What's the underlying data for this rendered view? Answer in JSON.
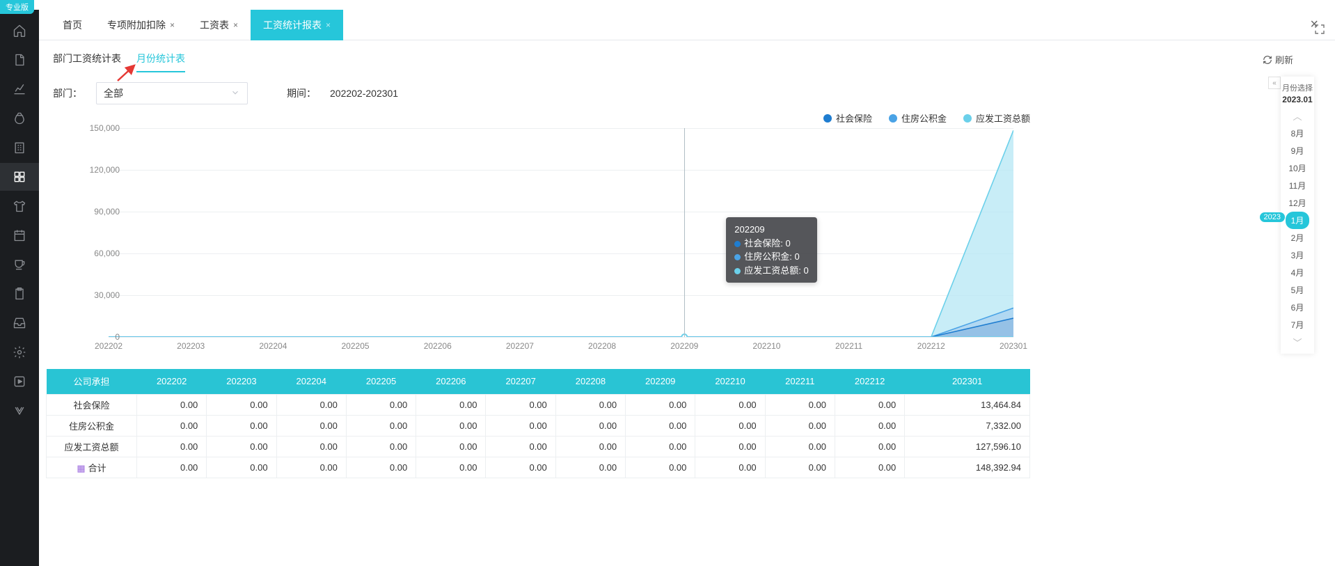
{
  "top_badge": "专业版",
  "tabs": [
    {
      "label": "首页",
      "closable": false
    },
    {
      "label": "专项附加扣除",
      "closable": true
    },
    {
      "label": "工资表",
      "closable": true
    },
    {
      "label": "工资统计报表",
      "closable": true,
      "active": true
    }
  ],
  "sub_tabs": [
    {
      "label": "部门工资统计表"
    },
    {
      "label": "月份统计表",
      "active": true
    }
  ],
  "refresh_label": "刷新",
  "filter": {
    "dept_label": "部门：",
    "dept_value": "全部",
    "period_label": "期间：",
    "period_value": "202202-202301"
  },
  "chart": {
    "type": "area",
    "categories": [
      "202202",
      "202203",
      "202204",
      "202205",
      "202206",
      "202207",
      "202208",
      "202209",
      "202210",
      "202211",
      "202212",
      "202301"
    ],
    "ylim": [
      0,
      150000
    ],
    "ytick_step": 30000,
    "yticks": [
      "0",
      "30,000",
      "60,000",
      "90,000",
      "120,000",
      "150,000"
    ],
    "grid_color": "#eceff1",
    "background_color": "#ffffff",
    "series": [
      {
        "name": "社会保险",
        "color": "#1f7dd0",
        "fill": "#8cb9e2",
        "values": [
          0,
          0,
          0,
          0,
          0,
          0,
          0,
          0,
          0,
          0,
          0,
          13465
        ]
      },
      {
        "name": "住房公积金",
        "color": "#4aa3e6",
        "fill": "#a9d0f0",
        "values": [
          0,
          0,
          0,
          0,
          0,
          0,
          0,
          0,
          0,
          0,
          0,
          20797
        ]
      },
      {
        "name": "应发工资总额",
        "color": "#6bd0ea",
        "fill": "#b6e7f4",
        "values": [
          0,
          0,
          0,
          0,
          0,
          0,
          0,
          0,
          0,
          0,
          0,
          148392
        ]
      }
    ],
    "hover": {
      "index": 7,
      "title": "202209",
      "rows": [
        {
          "color": "#1f7dd0",
          "text": "社会保险: 0"
        },
        {
          "color": "#4aa3e6",
          "text": "住房公积金: 0"
        },
        {
          "color": "#6bd0ea",
          "text": "应发工资总额: 0"
        }
      ]
    }
  },
  "table": {
    "header_first": "公司承担",
    "columns": [
      "202202",
      "202203",
      "202204",
      "202205",
      "202206",
      "202207",
      "202208",
      "202209",
      "202210",
      "202211",
      "202212",
      "202301"
    ],
    "rows": [
      {
        "label": "社会保险",
        "cells": [
          "0.00",
          "0.00",
          "0.00",
          "0.00",
          "0.00",
          "0.00",
          "0.00",
          "0.00",
          "0.00",
          "0.00",
          "0.00",
          "13,464.84"
        ]
      },
      {
        "label": "住房公积金",
        "cells": [
          "0.00",
          "0.00",
          "0.00",
          "0.00",
          "0.00",
          "0.00",
          "0.00",
          "0.00",
          "0.00",
          "0.00",
          "0.00",
          "7,332.00"
        ]
      },
      {
        "label": "应发工资总额",
        "cells": [
          "0.00",
          "0.00",
          "0.00",
          "0.00",
          "0.00",
          "0.00",
          "0.00",
          "0.00",
          "0.00",
          "0.00",
          "0.00",
          "127,596.10"
        ]
      },
      {
        "label": "合计",
        "icon": true,
        "cells": [
          "0.00",
          "0.00",
          "0.00",
          "0.00",
          "0.00",
          "0.00",
          "0.00",
          "0.00",
          "0.00",
          "0.00",
          "0.00",
          "148,392.94"
        ]
      }
    ]
  },
  "month_panel": {
    "header": "月份选择",
    "year": "2023.01",
    "year_tag": "2023",
    "months": [
      "8月",
      "9月",
      "10月",
      "11月",
      "12月",
      "1月",
      "2月",
      "3月",
      "4月",
      "5月",
      "6月",
      "7月"
    ],
    "selected": "1月"
  },
  "nav_icons": [
    "home",
    "doc",
    "chart-line",
    "money-bag",
    "building",
    "grid",
    "shirt",
    "calendar",
    "cup",
    "clipboard",
    "inbox",
    "gear",
    "play",
    "v-mark"
  ],
  "nav_active_index": 5
}
